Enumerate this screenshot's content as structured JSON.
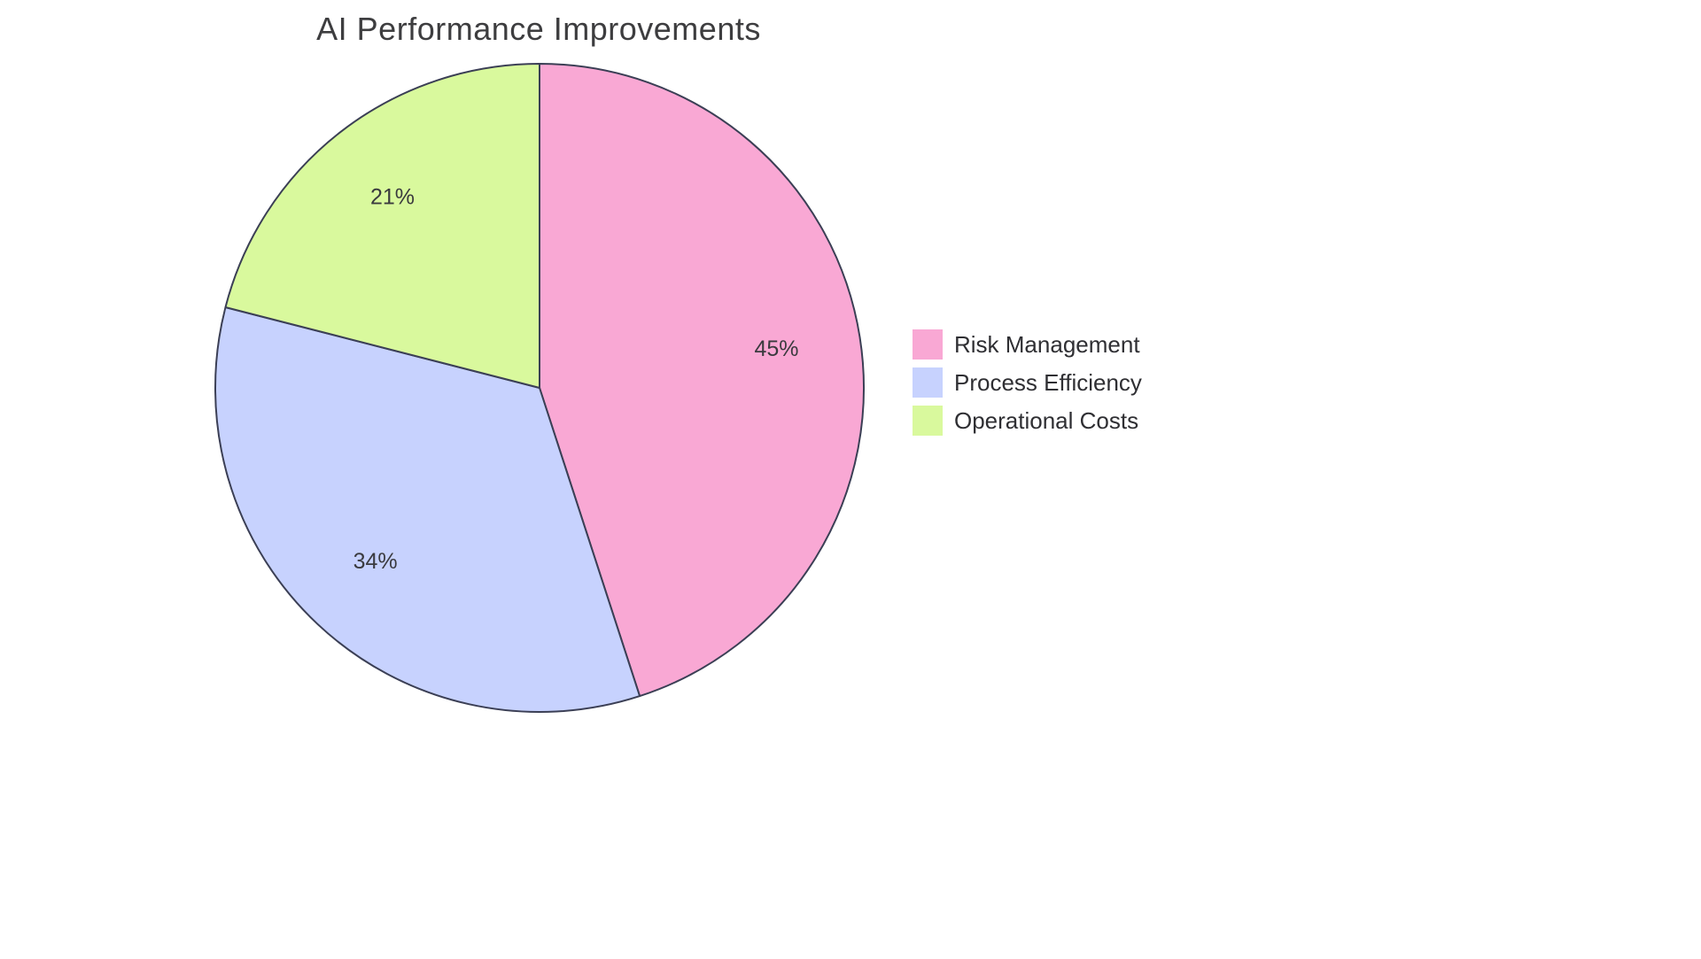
{
  "title": "AI Performance Improvements",
  "chart_data": {
    "type": "pie",
    "title": "AI Performance Improvements",
    "labels": [
      "Risk Management",
      "Process Efficiency",
      "Operational Costs"
    ],
    "values": [
      45,
      34,
      21
    ],
    "value_labels": [
      "45%",
      "34%",
      "21%"
    ],
    "colors": [
      "#F9A8D4",
      "#C7D2FE",
      "#D9F99D"
    ],
    "slice_stroke_color": "#3b3f55",
    "slice_stroke_width": 2,
    "label_color": "#3a3a3e",
    "start_angle_deg": 0,
    "direction": "clockwise",
    "legend_position": "right",
    "grid": false
  }
}
